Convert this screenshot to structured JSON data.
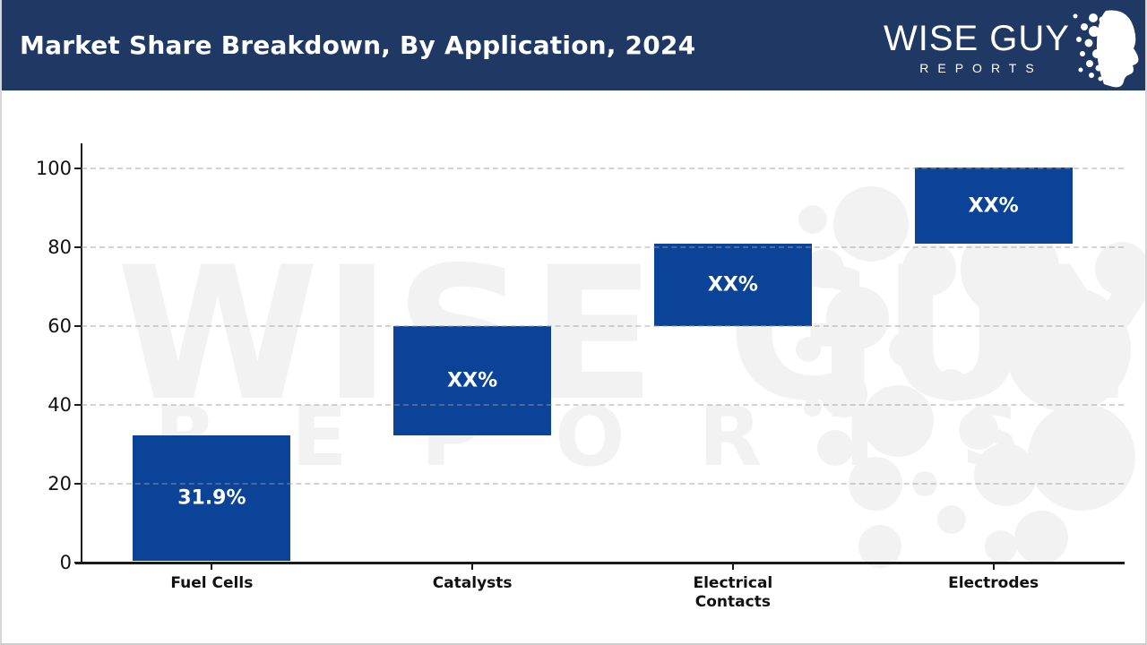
{
  "header": {
    "title": "Market Share Breakdown, By Application, 2024",
    "bg_color": "#203864",
    "logo": {
      "line1": "WISE GUY",
      "line2": "REPORTS"
    }
  },
  "watermark": {
    "line1": "WISE GUY",
    "line2": "REPORTS"
  },
  "chart_data": {
    "type": "bar",
    "subtype": "waterfall",
    "title": "Market Share Breakdown, By Application, 2024",
    "categories": [
      "Fuel Cells",
      "Catalysts",
      "Electrical Contacts",
      "Electrodes"
    ],
    "segments": [
      {
        "category": "Fuel Cells",
        "start": 0,
        "end": 31.9,
        "label": "31.9%"
      },
      {
        "category": "Catalysts",
        "start": 31.9,
        "end": 59.8,
        "label": "XX%"
      },
      {
        "category": "Electrical Contacts",
        "start": 59.8,
        "end": 80.6,
        "label": "XX%"
      },
      {
        "category": "Electrodes",
        "start": 80.6,
        "end": 100,
        "label": "XX%"
      }
    ],
    "y_ticks": [
      0,
      20,
      40,
      60,
      80,
      100
    ],
    "ylim": [
      0,
      100
    ],
    "xlabel": "",
    "ylabel": "",
    "grid": "horizontal-dashed",
    "legend": "none",
    "bar_color": "#0b4398",
    "bar_label_color": "#ffffff",
    "axis_color": "#1a1a1a"
  }
}
